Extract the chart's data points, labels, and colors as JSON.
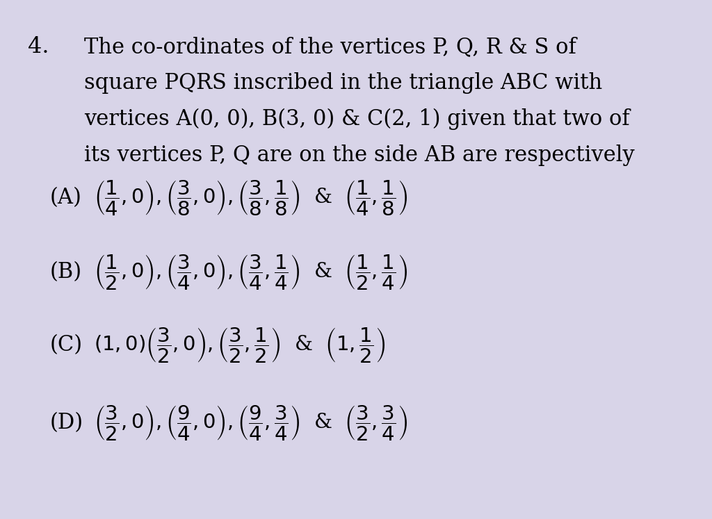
{
  "background_color": "#d8d4e8",
  "question_number": "4.",
  "question_text_lines": [
    "The co-ordinates of the vertices P, Q, R & S of",
    "square PQRS inscribed in the triangle ABC with",
    "vertices A(0, 0), B(3, 0) & C(2, 1) given that two of",
    "its vertices P, Q are on the side AB are respectively"
  ],
  "options": [
    {
      "label": "(A)",
      "parts": [
        {
          "num": "1",
          "den": "4",
          "extra": "0"
        },
        {
          "num": "3",
          "den": "8",
          "extra": "0"
        },
        {
          "num": "3",
          "den": "8",
          "extra2_num": "1",
          "extra2_den": "8"
        },
        {
          "num": "1",
          "den": "4",
          "extra2_num": "1",
          "extra2_den": "8"
        }
      ]
    },
    {
      "label": "(B)",
      "parts": [
        {
          "num": "1",
          "den": "2",
          "extra": "0"
        },
        {
          "num": "3",
          "den": "4",
          "extra": "0"
        },
        {
          "num": "3",
          "den": "4",
          "extra2_num": "1",
          "extra2_den": "4"
        },
        {
          "num": "1",
          "den": "2",
          "extra2_num": "1",
          "extra2_den": "4"
        }
      ]
    },
    {
      "label": "(C)",
      "intro": "(1, 0)",
      "parts": [
        {
          "num": "3",
          "den": "2",
          "extra": "0"
        },
        {
          "num": "3",
          "den": "2",
          "extra2_num": "1",
          "extra2_den": "2"
        },
        {
          "num": "1",
          "den": "2",
          "is_last": true
        }
      ]
    },
    {
      "label": "(D)",
      "parts": [
        {
          "num": "3",
          "den": "2",
          "extra": "0"
        },
        {
          "num": "9",
          "den": "4",
          "extra": "0"
        },
        {
          "num": "9",
          "den": "4",
          "extra2_num": "3",
          "extra2_den": "4"
        },
        {
          "num": "3",
          "den": "2",
          "extra2_num": "3",
          "extra2_den": "4"
        }
      ]
    }
  ]
}
